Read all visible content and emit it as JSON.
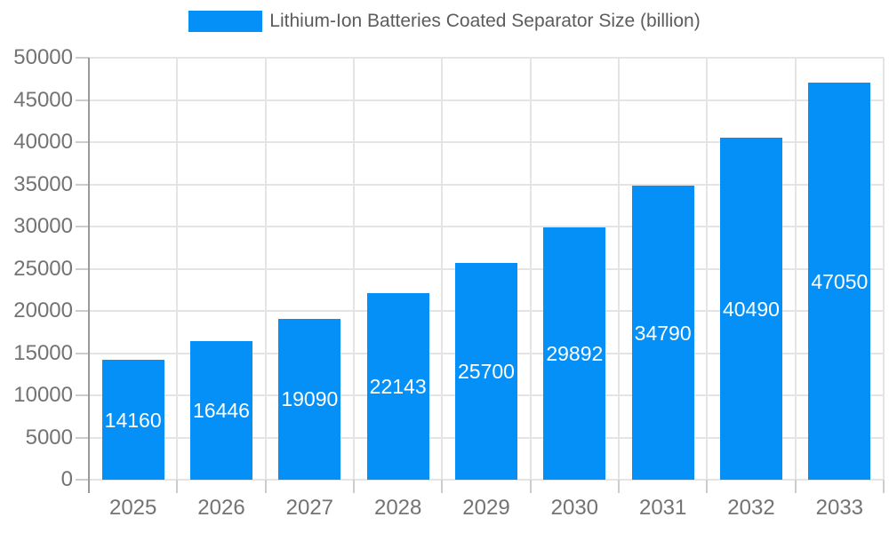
{
  "legend": {
    "label": "Lithium-Ion Batteries Coated Separator Size (billion)",
    "swatch_color": "#0590f8"
  },
  "colors": {
    "bar": "#0590f8",
    "gridline": "#e4e4e4",
    "axis_line": "#9a9a9a",
    "tick": "#cccccc",
    "axis_text": "#737373",
    "legend_text": "#5c5c5c",
    "value_label_text": "#ffffff",
    "background": "#ffffff"
  },
  "chart_data": {
    "type": "bar",
    "title": "Lithium-Ion Batteries Coated Separator Size (billion)",
    "categories": [
      "2025",
      "2026",
      "2027",
      "2028",
      "2029",
      "2030",
      "2031",
      "2032",
      "2033"
    ],
    "values": [
      14160,
      16446,
      19090,
      22143,
      25700,
      29892,
      34790,
      40490,
      47050
    ],
    "value_labels": [
      "14160",
      "16446",
      "19090",
      "22143",
      "25700",
      "29892",
      "34790",
      "40490",
      "47050"
    ],
    "ytick_labels": [
      "0",
      "5000",
      "10000",
      "15000",
      "20000",
      "25000",
      "30000",
      "35000",
      "40000",
      "45000",
      "50000"
    ],
    "xlabel": "",
    "ylabel": "",
    "ylim": [
      0,
      50000
    ],
    "ytick_step": 5000,
    "grid": true,
    "legend_position": "top",
    "value_label_position": "centered-inside-bar",
    "bar_color": "#0590f8"
  }
}
